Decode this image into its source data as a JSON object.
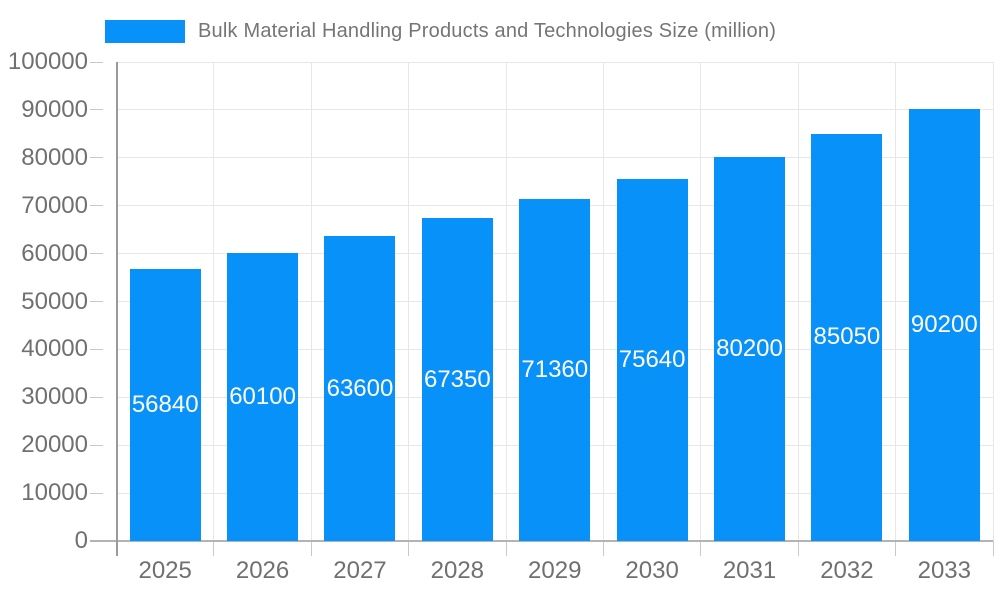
{
  "legend": {
    "label": "Bulk Material Handling Products and Technologies Size (million)"
  },
  "chart_data": {
    "type": "bar",
    "title": "Bulk Material Handling Products and Technologies Size (million)",
    "categories": [
      "2025",
      "2026",
      "2027",
      "2028",
      "2029",
      "2030",
      "2031",
      "2032",
      "2033"
    ],
    "series": [
      {
        "name": "Bulk Material Handling Products and Technologies Size (million)",
        "values": [
          56840,
          60100,
          63600,
          67350,
          71360,
          75640,
          80200,
          85050,
          90200
        ]
      }
    ],
    "xlabel": "",
    "ylabel": "",
    "ylim": [
      0,
      100000
    ],
    "yticks": [
      0,
      10000,
      20000,
      30000,
      40000,
      50000,
      60000,
      70000,
      80000,
      90000,
      100000
    ],
    "grid": true,
    "legend_position": "top",
    "value_labels_inside_bars": true
  },
  "colors": {
    "bar": "#0991fa",
    "axis_text": "#707070",
    "legend_text": "#757575",
    "grid_line": "#e7e7e7",
    "tick_mark": "#c9c9c9",
    "y_axis_line": "#9a9a9a",
    "x_axis_line": "#b3b3b3",
    "value_label": "#ffffff",
    "background": "#ffffff"
  }
}
